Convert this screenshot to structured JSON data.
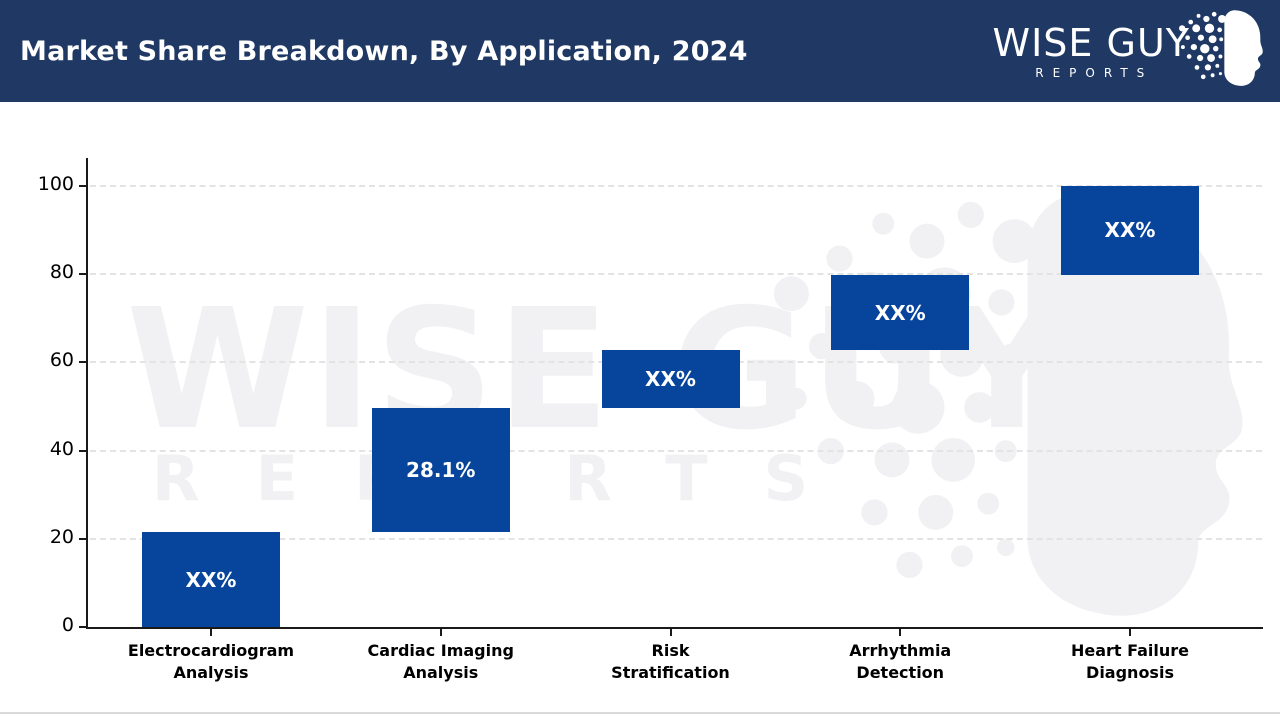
{
  "header": {
    "title": "Market Share Breakdown, By Application, 2024",
    "bg_color": "#1f3864",
    "logo": {
      "wordmark": "WISE GUY",
      "subtext": "REPORTS"
    }
  },
  "watermark": {
    "wordmark": "WISE GUY",
    "subtext": "REPORTS"
  },
  "chart_data": {
    "type": "bar",
    "subtype": "waterfall",
    "title": "Market Share Breakdown, By Application, 2024",
    "categories": [
      [
        "Electrocardiogram",
        "Analysis"
      ],
      [
        "Cardiac Imaging",
        "Analysis"
      ],
      [
        "Risk",
        "Stratification"
      ],
      [
        "Arrhythmia",
        "Detection"
      ],
      [
        "Heart Failure",
        "Diagnosis"
      ]
    ],
    "segments": [
      {
        "category": "Electrocardiogram Analysis",
        "label": "XX%",
        "start": 0,
        "end": 21.5
      },
      {
        "category": "Cardiac Imaging Analysis",
        "label": "28.1%",
        "start": 21.5,
        "end": 49.6
      },
      {
        "category": "Risk Stratification",
        "label": "XX%",
        "start": 49.6,
        "end": 62.7
      },
      {
        "category": "Arrhythmia Detection",
        "label": "XX%",
        "start": 62.7,
        "end": 79.9
      },
      {
        "category": "Heart Failure Diagnosis",
        "label": "XX%",
        "start": 79.9,
        "end": 100
      }
    ],
    "yticks": [
      0,
      20,
      40,
      60,
      80,
      100
    ],
    "ylim": [
      0,
      105
    ],
    "grid": "horizontal-dashed",
    "legend": "none",
    "bar_color": "#07459c",
    "bar_label_color": "#ffffff",
    "axis_color": "#1a1a1a"
  }
}
